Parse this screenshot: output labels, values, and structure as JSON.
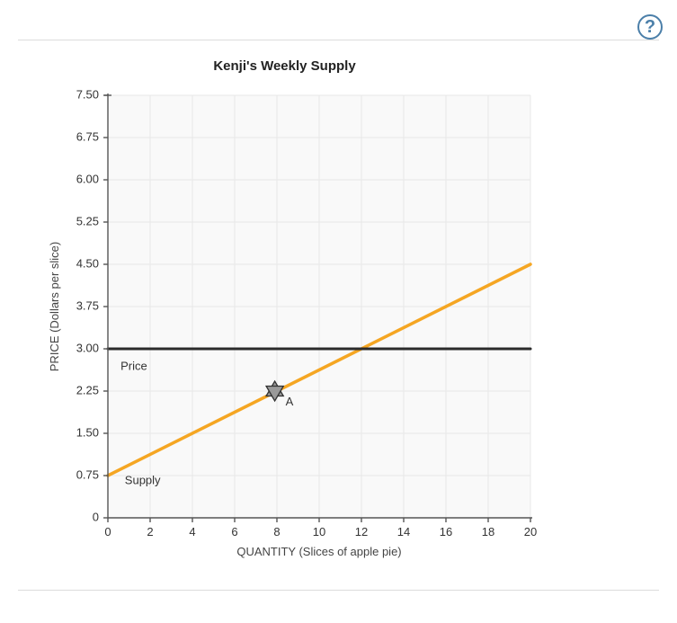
{
  "help_tooltip": "?",
  "chart": {
    "type": "line",
    "title": "Kenji's Weekly Supply",
    "title_fontsize": 15,
    "xaxis": {
      "label": "QUANTITY (Slices of apple pie)",
      "min": 0,
      "max": 20,
      "ticks": [
        0,
        2,
        4,
        6,
        8,
        10,
        12,
        14,
        16,
        18,
        20
      ],
      "label_fontsize": 13
    },
    "yaxis": {
      "label": "PRICE (Dollars per slice)",
      "min": 0,
      "max": 7.5,
      "ticks": [
        "0",
        "0.75",
        "1.50",
        "2.25",
        "3.00",
        "3.75",
        "4.50",
        "5.25",
        "6.00",
        "6.75",
        "7.50"
      ],
      "tick_values": [
        0,
        0.75,
        1.5,
        2.25,
        3.0,
        3.75,
        4.5,
        5.25,
        6.0,
        6.75,
        7.5
      ],
      "label_fontsize": 13
    },
    "plot_background": "#f9f9f9",
    "grid_color": "#e8e8e8",
    "axis_color": "#555555",
    "series": [
      {
        "name": "Supply",
        "type": "line",
        "color": "#f5a623",
        "width": 3.5,
        "points": [
          [
            0,
            0.75
          ],
          [
            20,
            4.5
          ]
        ],
        "label": "Supply",
        "label_pos": {
          "x": 0.8,
          "y": 0.75
        }
      },
      {
        "name": "Price",
        "type": "line",
        "color": "#2b2b2b",
        "width": 3,
        "points": [
          [
            0,
            3.0
          ],
          [
            20,
            3.0
          ]
        ],
        "label": "Price",
        "label_pos": {
          "x": 0.6,
          "y": 2.78
        }
      }
    ],
    "markers": [
      {
        "name": "A",
        "shape": "six-point-star",
        "x": 7.9,
        "y": 2.25,
        "size": 11,
        "fill": "#9a9a9a",
        "stroke": "#333333",
        "label": "A",
        "label_offset": {
          "dx": 12,
          "dy": 16
        }
      }
    ]
  }
}
